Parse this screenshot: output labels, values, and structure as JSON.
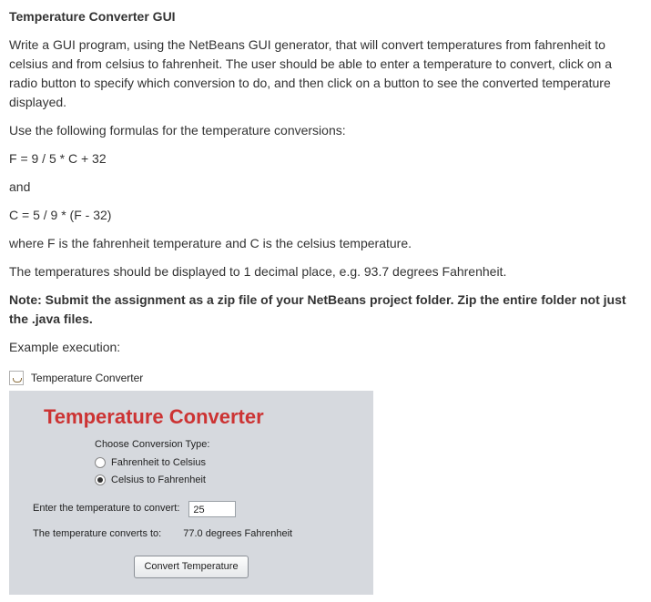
{
  "doc": {
    "title": "Temperature Converter GUI",
    "p1": "Write a GUI program, using the NetBeans GUI generator, that will convert temperatures from fahrenheit to celsius and from celsius to fahrenheit. The user should be able to enter a temperature to convert, click on a radio button to specify which conversion to do, and then click on a button to see the converted temperature displayed.",
    "p2": "Use the following formulas for the temperature conversions:",
    "formula1": "F = 9 / 5 * C + 32",
    "and": "and",
    "formula2": "C = 5 / 9 * (F - 32)",
    "p3": "where F is the fahrenheit temperature and C is the celsius temperature.",
    "p4": "The temperatures should be displayed to 1 decimal place, e.g. 93.7 degrees Fahrenheit.",
    "note": "Note: Submit the assignment as a zip file of your NetBeans project folder. Zip the entire folder not just the .java files.",
    "example": "Example execution:"
  },
  "app": {
    "window_title": "Temperature Converter",
    "heading": "Temperature Converter",
    "choose_label": "Choose Conversion Type:",
    "radio1": "Fahrenheit to Celsius",
    "radio2": "Celsius to Fahrenheit",
    "enter_label": "Enter the temperature to convert:",
    "input_value": "25",
    "result_label": "The temperature converts to:",
    "result_value": "77.0 degrees Fahrenheit",
    "button": "Convert Temperature",
    "colors": {
      "panel_bg": "#d6d9de",
      "heading_color": "#cc3333"
    }
  }
}
